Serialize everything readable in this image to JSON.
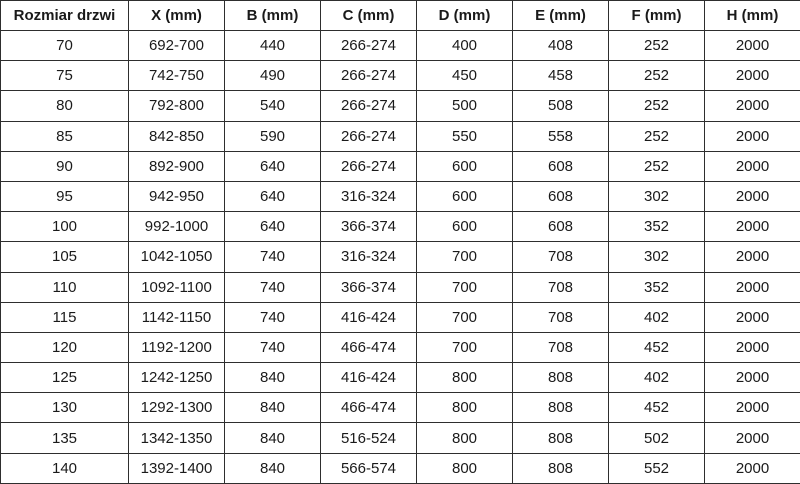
{
  "table": {
    "columns": [
      {
        "key": "size",
        "label": "Rozmiar drzwi"
      },
      {
        "key": "x",
        "label": "X (mm)"
      },
      {
        "key": "b",
        "label": "B (mm)"
      },
      {
        "key": "c",
        "label": "C (mm)"
      },
      {
        "key": "d",
        "label": "D (mm)"
      },
      {
        "key": "e",
        "label": "E (mm)"
      },
      {
        "key": "f",
        "label": "F (mm)"
      },
      {
        "key": "h",
        "label": "H (mm)"
      }
    ],
    "rows": [
      [
        "70",
        "692-700",
        "440",
        "266-274",
        "400",
        "408",
        "252",
        "2000"
      ],
      [
        "75",
        "742-750",
        "490",
        "266-274",
        "450",
        "458",
        "252",
        "2000"
      ],
      [
        "80",
        "792-800",
        "540",
        "266-274",
        "500",
        "508",
        "252",
        "2000"
      ],
      [
        "85",
        "842-850",
        "590",
        "266-274",
        "550",
        "558",
        "252",
        "2000"
      ],
      [
        "90",
        "892-900",
        "640",
        "266-274",
        "600",
        "608",
        "252",
        "2000"
      ],
      [
        "95",
        "942-950",
        "640",
        "316-324",
        "600",
        "608",
        "302",
        "2000"
      ],
      [
        "100",
        "992-1000",
        "640",
        "366-374",
        "600",
        "608",
        "352",
        "2000"
      ],
      [
        "105",
        "1042-1050",
        "740",
        "316-324",
        "700",
        "708",
        "302",
        "2000"
      ],
      [
        "110",
        "1092-1100",
        "740",
        "366-374",
        "700",
        "708",
        "352",
        "2000"
      ],
      [
        "115",
        "1142-1150",
        "740",
        "416-424",
        "700",
        "708",
        "402",
        "2000"
      ],
      [
        "120",
        "1192-1200",
        "740",
        "466-474",
        "700",
        "708",
        "452",
        "2000"
      ],
      [
        "125",
        "1242-1250",
        "840",
        "416-424",
        "800",
        "808",
        "402",
        "2000"
      ],
      [
        "130",
        "1292-1300",
        "840",
        "466-474",
        "800",
        "808",
        "452",
        "2000"
      ],
      [
        "135",
        "1342-1350",
        "840",
        "516-524",
        "800",
        "808",
        "502",
        "2000"
      ],
      [
        "140",
        "1392-1400",
        "840",
        "566-574",
        "800",
        "808",
        "552",
        "2000"
      ]
    ]
  },
  "colors": {
    "border": "#2e2e2e",
    "text": "#1a1a1a",
    "background": "#ffffff"
  }
}
